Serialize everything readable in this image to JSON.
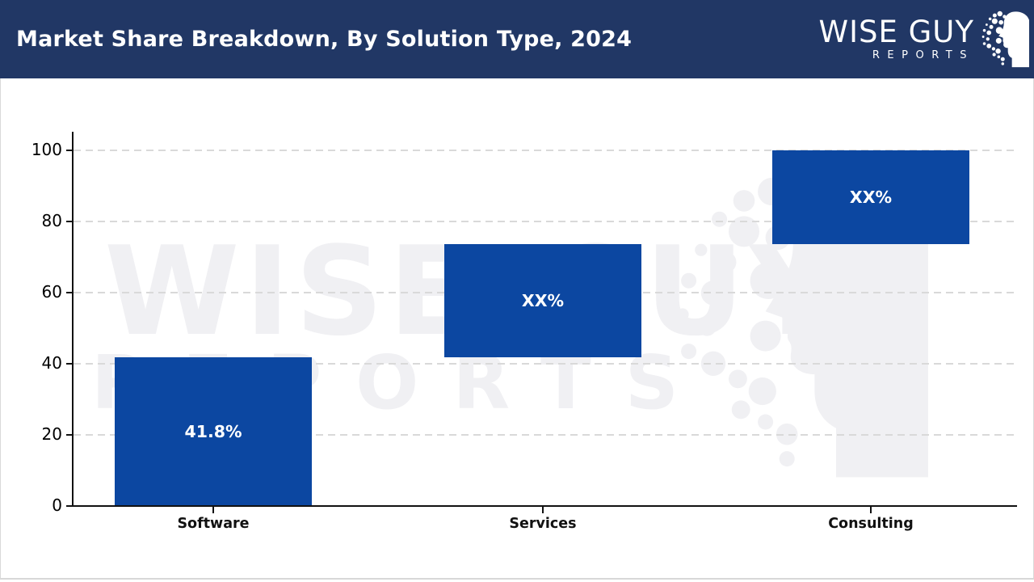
{
  "header": {
    "title": "Market Share Breakdown, By Solution Type, 2024",
    "bg_color": "#213765",
    "logo": {
      "line1": "WISE GUY",
      "line2": "REPORTS",
      "face_icon": "dotted-head-profile"
    }
  },
  "watermark": {
    "line1": "WISE GUY",
    "line2": "REPORTS",
    "face_icon": "dotted-head-profile"
  },
  "chart_data": {
    "type": "bar",
    "subtype": "waterfall",
    "title": "Market Share Breakdown, By Solution Type, 2024",
    "categories": [
      "Software",
      "Services",
      "Consulting"
    ],
    "segments": [
      {
        "category": "Software",
        "start": 0,
        "end": 41.8,
        "label": "41.8%"
      },
      {
        "category": "Services",
        "start": 41.8,
        "end": 73.6,
        "label": "XX%"
      },
      {
        "category": "Consulting",
        "start": 73.6,
        "end": 100,
        "label": "XX%"
      }
    ],
    "xlabel": "",
    "ylabel": "",
    "ylim": [
      0,
      100
    ],
    "yticks": [
      0,
      20,
      40,
      60,
      80,
      100
    ],
    "grid": "horizontal-dashed",
    "grid_color": "#d9d9d9",
    "bar_color": "#0c47a1",
    "bar_label_color": "#ffffff",
    "legend": "none"
  }
}
